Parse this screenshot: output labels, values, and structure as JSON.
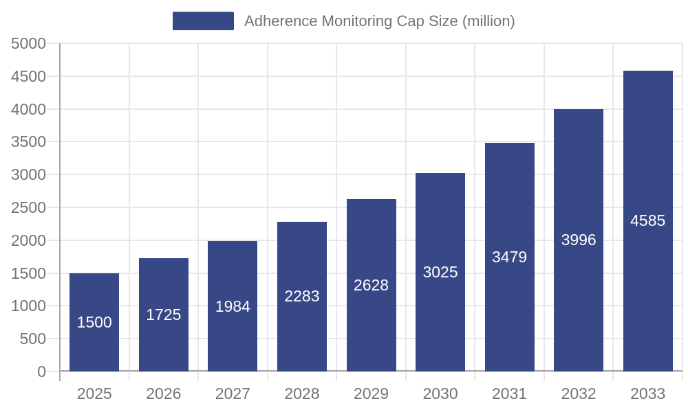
{
  "chart_data": {
    "type": "bar",
    "title": "",
    "legend": "Adherence Monitoring Cap Size (million)",
    "legend_position": "top",
    "categories": [
      "2025",
      "2026",
      "2027",
      "2028",
      "2029",
      "2030",
      "2031",
      "2032",
      "2033"
    ],
    "series": [
      {
        "name": "Adherence Monitoring Cap Size (million)",
        "values": [
          1500,
          1725,
          1984,
          2283,
          2628,
          3025,
          3479,
          3996,
          4585
        ]
      }
    ],
    "xlabel": "",
    "ylabel": "",
    "ylim": [
      0,
      5000
    ],
    "ystep": 500,
    "grid": "on",
    "bar_value_labels": "inside-center",
    "colors": {
      "bar": "#384785",
      "bar_label": "#ffffff",
      "axis_text": "#737373",
      "legend_text": "#737373",
      "grid_line": "#e7e7e7",
      "axis_line": "#a6a6a6",
      "background": "#ffffff"
    }
  }
}
